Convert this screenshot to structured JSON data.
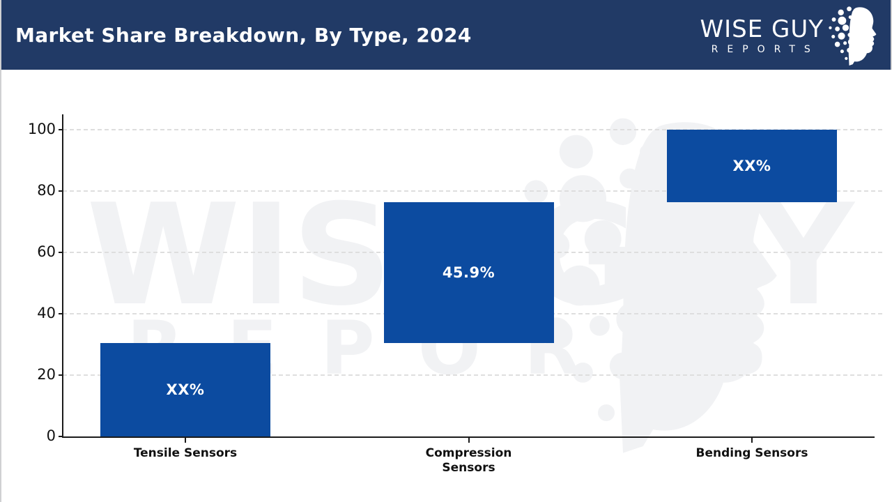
{
  "header": {
    "title": "Market Share Breakdown, By Type, 2024",
    "bg_color": "#213a66",
    "logo": {
      "line1": "WISE GUY",
      "line2": "REPORTS"
    }
  },
  "watermark": {
    "word1": "WISE",
    "word2": "GUY",
    "word3": "REPORTS"
  },
  "chart_data": {
    "type": "bar",
    "variant": "stacked-waterfall",
    "title": "Market Share Breakdown, By Type, 2024",
    "categories": [
      "Tensile Sensors",
      "Compression Sensors",
      "Bending Sensors"
    ],
    "segments": [
      {
        "category": "Tensile Sensors",
        "start": 0,
        "end": 30.4,
        "label": "XX%"
      },
      {
        "category": "Compression Sensors",
        "start": 30.4,
        "end": 76.3,
        "label": "45.9%"
      },
      {
        "category": "Bending Sensors",
        "start": 76.3,
        "end": 100,
        "label": "XX%"
      }
    ],
    "values": [
      30.4,
      45.9,
      23.7
    ],
    "yticks": [
      0,
      20,
      40,
      60,
      80,
      100
    ],
    "ylim": [
      0,
      105
    ],
    "grid": "horizontal-dashed",
    "legend": "none",
    "xlabel": "",
    "ylabel": "",
    "bar_color": "#0c4ba0",
    "bar_label_color": "#ffffff",
    "gridline_color": "#dedede",
    "axis_color": "#1a1a1a"
  }
}
